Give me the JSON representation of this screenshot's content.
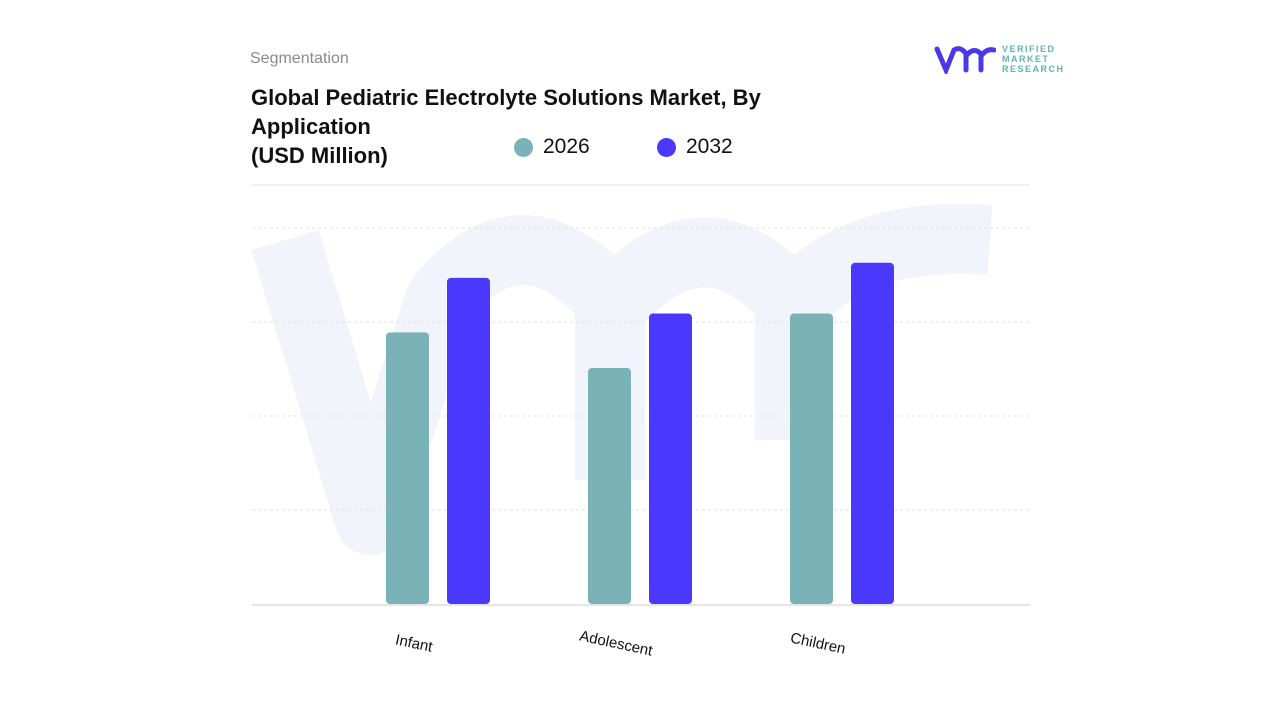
{
  "header": {
    "section": "Segmentation",
    "logo_text": "VERIFIED MARKET RESEARCH"
  },
  "chart_data": {
    "type": "bar",
    "title_lines": [
      "Global Pediatric Electrolyte Solutions Market, By",
      "Application",
      "(USD Million)"
    ],
    "categories": [
      "Infant",
      "Adolescent",
      "Children"
    ],
    "series": [
      {
        "name": "2026",
        "color": "#7ab3b7",
        "values": [
          2.89,
          2.51,
          3.09
        ]
      },
      {
        "name": "2032",
        "color": "#4b38fd",
        "values": [
          3.47,
          3.09,
          3.63
        ]
      }
    ],
    "ylim": [
      0,
      4
    ],
    "grid": true,
    "legend": "top",
    "xlabel": "",
    "ylabel": ""
  }
}
